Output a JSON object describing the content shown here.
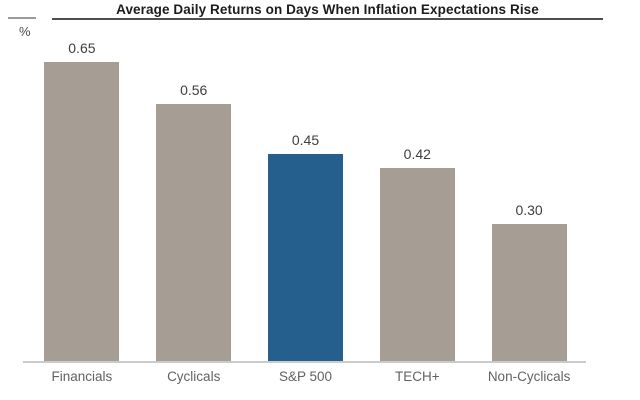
{
  "header": {
    "unit_label": "%",
    "title": "Average Daily Returns on Days When Inflation Expectations Rise"
  },
  "chart_data": {
    "type": "bar",
    "title": "Average Daily Returns on Days When Inflation Expectations Rise",
    "unit": "%",
    "categories": [
      "Financials",
      "Cyclicals",
      "S&P 500",
      "TECH+",
      "Non-Cyclicals"
    ],
    "values": [
      0.65,
      0.56,
      0.45,
      0.42,
      0.3
    ],
    "value_labels": [
      "0.65",
      "0.56",
      "0.45",
      "0.42",
      "0.30"
    ],
    "highlight_index": 2,
    "bar_colors": [
      "#a69d95",
      "#a69d95",
      "#245f8e",
      "#a69d95",
      "#a69d95"
    ],
    "colors": {
      "bar_default": "#a69d95",
      "bar_highlight": "#245f8e",
      "title_text": "#1c1c1c",
      "value_text": "#3e3e3e",
      "category_text": "#626262",
      "baseline": "#cbcbcb",
      "title_rule": "#4f4f4f"
    },
    "xlabel": "",
    "ylabel": "%",
    "ylim": [
      0,
      0.72
    ],
    "grid": false,
    "legend": false
  }
}
